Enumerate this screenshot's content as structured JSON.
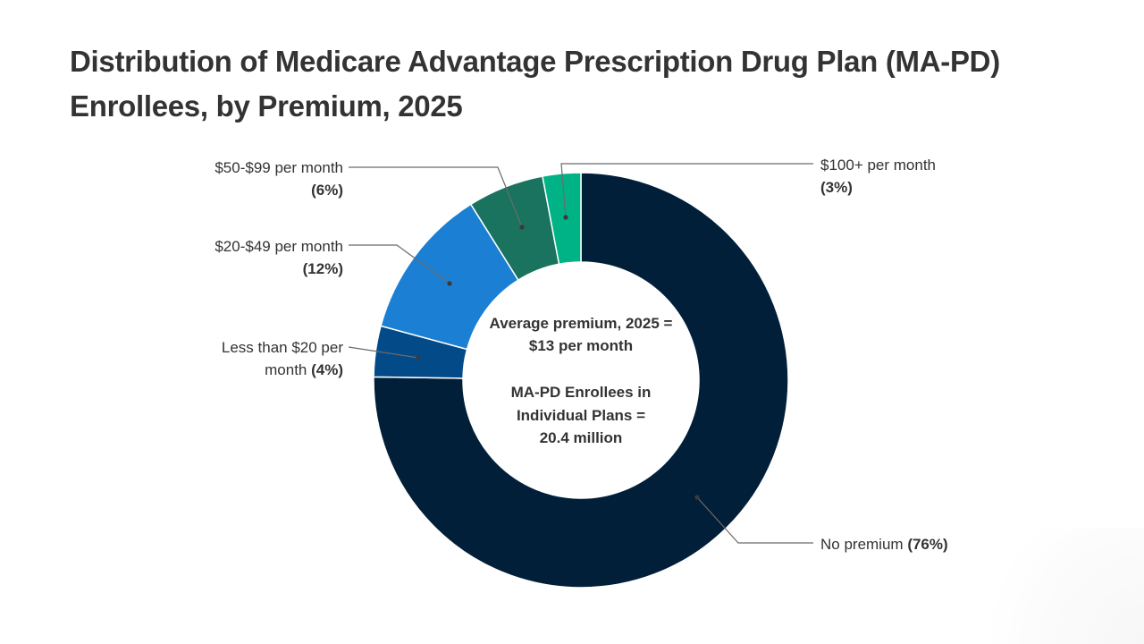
{
  "chart_data": {
    "type": "pie",
    "variant": "donut",
    "title_lines": [
      "Distribution of Medicare Advantage Prescription Drug Plan (MA-PD)",
      "Enrollees, by Premium, 2025"
    ],
    "start_angle": "12 o'clock",
    "direction": "clockwise",
    "slices": [
      {
        "id": "none",
        "label_lines": [
          "No premium"
        ],
        "pct_text": "(76%)",
        "label_inline": true,
        "value": 76,
        "color": "#011f39"
      },
      {
        "id": "lt20",
        "label_lines": [
          "Less than $20 per",
          "month"
        ],
        "pct_text": "(4%)",
        "label_inline": true,
        "value": 4,
        "color": "#034a88"
      },
      {
        "id": "p20_49",
        "label_lines": [
          "$20-$49 per month"
        ],
        "pct_text": "(12%)",
        "label_inline": false,
        "value": 12,
        "color": "#1b7fd4"
      },
      {
        "id": "p50_99",
        "label_lines": [
          "$50-$99 per month"
        ],
        "pct_text": "(6%)",
        "label_inline": false,
        "value": 6,
        "color": "#19735f"
      },
      {
        "id": "p100",
        "label_lines": [
          "$100+ per month"
        ],
        "pct_text": "(3%)",
        "label_inline": false,
        "value": 3,
        "color": "#00b386"
      }
    ],
    "center_text": {
      "block1": [
        "Average premium, 2025 =",
        "$13 per month"
      ],
      "block2": [
        "MA-PD Enrollees in",
        "Individual Plans =",
        "20.4 million"
      ]
    },
    "legend": "callout labels"
  }
}
